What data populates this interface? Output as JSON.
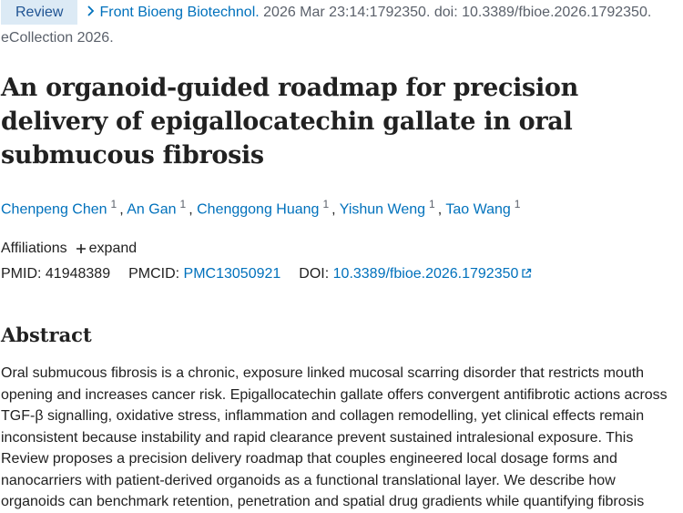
{
  "citation": {
    "type_badge": "Review",
    "journal": "Front Bioeng Biotechnol.",
    "details": "2026 Mar 23:14:1792350. doi: 10.3389/fbioe.2026.1792350.",
    "ecollection": "eCollection 2026."
  },
  "title": "An organoid-guided roadmap for precision delivery of epigallocatechin gallate in oral submucous fibrosis",
  "authors": [
    {
      "name": "Chenpeng Chen",
      "affiliation": "1",
      "separator": ","
    },
    {
      "name": "An Gan",
      "affiliation": "1",
      "separator": ","
    },
    {
      "name": "Chenggong Huang",
      "affiliation": "1",
      "separator": ","
    },
    {
      "name": "Yishun Weng",
      "affiliation": "1",
      "separator": ","
    },
    {
      "name": "Tao Wang",
      "affiliation": "1"
    }
  ],
  "affiliations": {
    "label": "Affiliations",
    "toggle": "expand"
  },
  "identifiers": {
    "pmid_label": "PMID:",
    "pmid": "41948389",
    "pmcid_label": "PMCID:",
    "pmcid": "PMC13050921",
    "doi_label": "DOI:",
    "doi": "10.3389/fbioe.2026.1792350"
  },
  "abstract": {
    "heading": "Abstract",
    "text": "Oral submucous fibrosis is a chronic, exposure linked mucosal scarring disorder that restricts mouth opening and increases cancer risk. Epigallocatechin gallate offers convergent antifibrotic actions across TGF-β signalling, oxidative stress, inflammation and collagen remodelling, yet clinical effects remain inconsistent because instability and rapid clearance prevent sustained intralesional exposure. This Review proposes a precision delivery roadmap that couples engineered local dosage forms and nanocarriers with patient-derived organoids as a functional translational layer. We describe how organoids can benchmark retention, penetration and spatial drug gradients while quantifying fibrosis"
  }
}
